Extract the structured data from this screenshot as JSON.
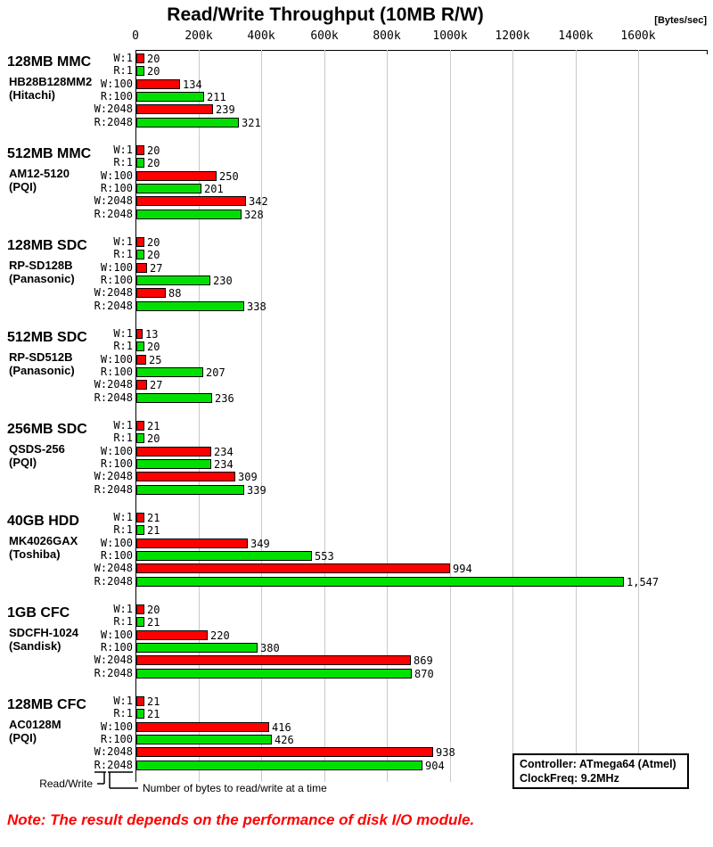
{
  "title": "Read/Write Throughput (10MB R/W)",
  "unit_label": "[Bytes/sec]",
  "colors": {
    "write_bar": "#ff0000",
    "read_bar": "#00e000",
    "bar_border": "#000000",
    "gridline": "#c9c9c9",
    "note_text": "#ff0000"
  },
  "legend": {
    "read_write_label": "Read/Write",
    "bytes_label": "Number of bytes to read/write at a time"
  },
  "info_box": {
    "line1": "Controller: ATmega64 (Atmel)",
    "line2": "ClockFreq: 9.2MHz"
  },
  "note": "Note: The result depends on the performance of disk I/O module.",
  "chart_data": {
    "type": "bar",
    "orientation": "horizontal",
    "title": "Read/Write Throughput (10MB R/W)",
    "value_unit": "Bytes/sec",
    "axis_tick_labels": [
      "0",
      "200k",
      "400k",
      "600k",
      "800k",
      "1000k",
      "1200k",
      "1400k",
      "1600k"
    ],
    "axis_ticks_k": [
      0,
      200,
      400,
      600,
      800,
      1000,
      1200,
      1400,
      1600
    ],
    "axis_max_k": 1600,
    "grid": true,
    "bar_keys": [
      "W:1",
      "R:1",
      "W:100",
      "R:100",
      "W:2048",
      "R:2048"
    ],
    "bar_types": [
      "write",
      "read",
      "write",
      "read",
      "write",
      "read"
    ],
    "groups": [
      {
        "name": "128MB MMC",
        "model": "HB28B128MM2",
        "maker": "(Hitachi)",
        "values_k": [
          20,
          20,
          134,
          211,
          239,
          321
        ],
        "labels": [
          "20",
          "20",
          "134",
          "211",
          "239",
          "321"
        ]
      },
      {
        "name": "512MB MMC",
        "model": "AM12-5120",
        "maker": "(PQI)",
        "values_k": [
          20,
          20,
          250,
          201,
          342,
          328
        ],
        "labels": [
          "20",
          "20",
          "250",
          "201",
          "342",
          "328"
        ]
      },
      {
        "name": "128MB SDC",
        "model": "RP-SD128B",
        "maker": "(Panasonic)",
        "values_k": [
          20,
          20,
          27,
          230,
          88,
          338
        ],
        "labels": [
          "20",
          "20",
          "27",
          "230",
          "88",
          "338"
        ]
      },
      {
        "name": "512MB SDC",
        "model": "RP-SD512B",
        "maker": "(Panasonic)",
        "values_k": [
          13,
          20,
          25,
          207,
          27,
          236
        ],
        "labels": [
          "13",
          "20",
          "25",
          "207",
          "27",
          "236"
        ]
      },
      {
        "name": "256MB SDC",
        "model": "QSDS-256",
        "maker": "(PQI)",
        "values_k": [
          21,
          20,
          234,
          234,
          309,
          339
        ],
        "labels": [
          "21",
          "20",
          "234",
          "234",
          "309",
          "339"
        ]
      },
      {
        "name": "40GB HDD",
        "model": "MK4026GAX",
        "maker": "(Toshiba)",
        "values_k": [
          21,
          21,
          349,
          553,
          994,
          1547
        ],
        "labels": [
          "21",
          "21",
          "349",
          "553",
          "994",
          "1,547"
        ]
      },
      {
        "name": "1GB CFC",
        "model": "SDCFH-1024",
        "maker": "(Sandisk)",
        "values_k": [
          20,
          21,
          220,
          380,
          869,
          870
        ],
        "labels": [
          "20",
          "21",
          "220",
          "380",
          "869",
          "870"
        ]
      },
      {
        "name": "128MB CFC",
        "model": "AC0128M",
        "maker": "(PQI)",
        "values_k": [
          21,
          21,
          416,
          426,
          938,
          904
        ],
        "labels": [
          "21",
          "21",
          "416",
          "426",
          "938",
          "904"
        ]
      }
    ]
  }
}
